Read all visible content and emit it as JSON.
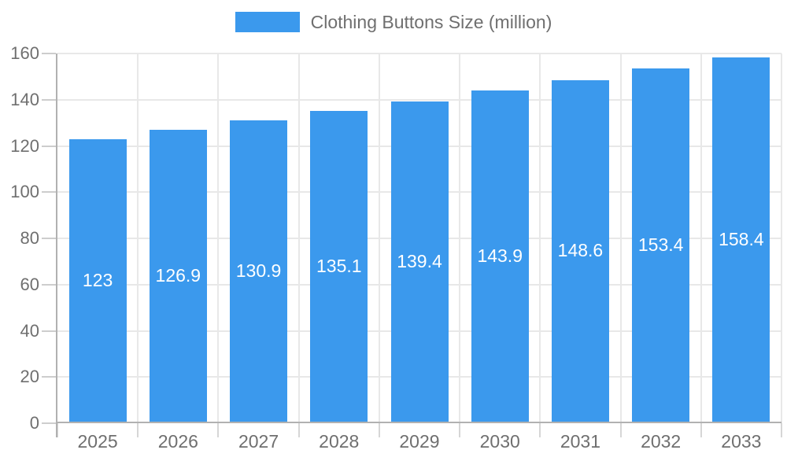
{
  "chart_data": {
    "type": "bar",
    "title": "Clothing Buttons Size (million)",
    "categories": [
      "2025",
      "2026",
      "2027",
      "2028",
      "2029",
      "2030",
      "2031",
      "2032",
      "2033"
    ],
    "series": [
      {
        "name": "Clothing Buttons Size (million)",
        "values": [
          123,
          126.9,
          130.9,
          135.1,
          139.4,
          143.9,
          148.6,
          153.4,
          158.4
        ]
      }
    ],
    "value_labels": [
      "123",
      "126.9",
      "130.9",
      "135.1",
      "139.4",
      "143.9",
      "148.6",
      "153.4",
      "158.4"
    ],
    "xlabel": "",
    "ylabel": "",
    "ylim": [
      0,
      160
    ],
    "yticks": [
      0,
      20,
      40,
      60,
      80,
      100,
      120,
      140,
      160
    ],
    "grid": "horizontal and vertical gridlines on",
    "legend_position": "top-center",
    "colors": {
      "bar": "#3b99ed",
      "value_label": "#ffffff",
      "axis_line": "#b1b1b1",
      "gridline": "#e8e8e8",
      "tick": "#cdcdcd",
      "label_text": "#6f6f6f",
      "background": "#ffffff"
    }
  }
}
